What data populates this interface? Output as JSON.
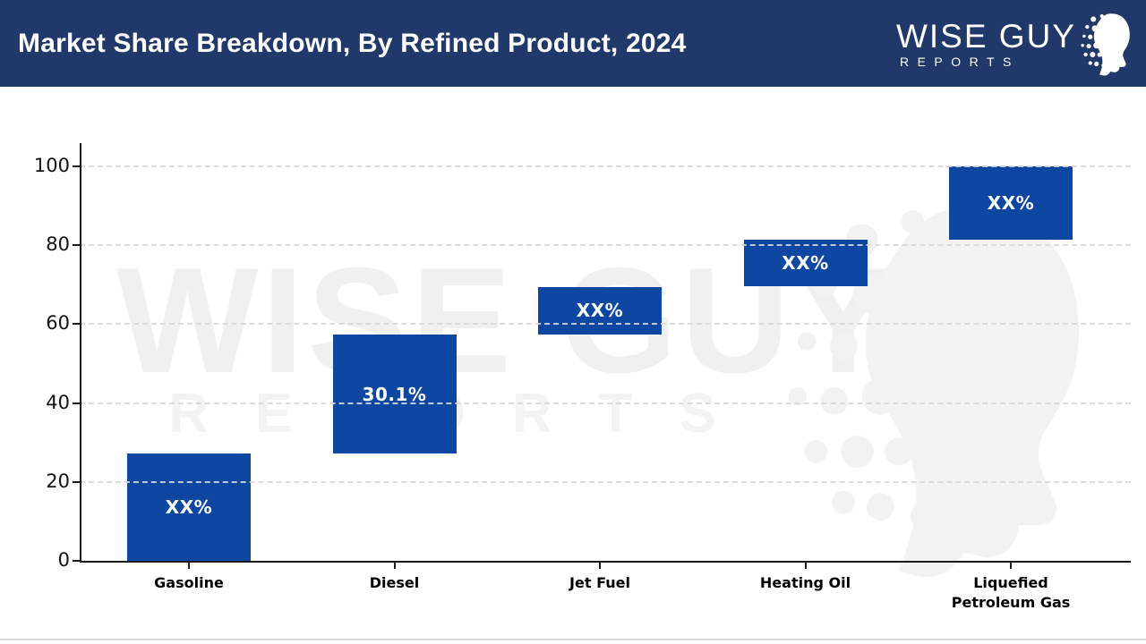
{
  "header": {
    "title": "Market Share Breakdown, By Refined Product, 2024",
    "logo": {
      "line1": "WISE GUY",
      "line2": "REPORTS"
    }
  },
  "watermark": {
    "line1": "WISE GUY",
    "line2": "REPORTS"
  },
  "colors": {
    "header_bg": "#20386a",
    "bar": "#0d47a1",
    "axis": "#1a1a1a",
    "grid": "#d7d7d7",
    "bar_label_text": "#ffffff",
    "watermark": "#f1f1f1",
    "bottom_divider": "#d9d9d9"
  },
  "chart_data": {
    "type": "bar",
    "subtype": "waterfall",
    "title": "Market Share Breakdown, By Refined Product, 2024",
    "xlabel": "",
    "ylabel": "",
    "ylim": [
      0,
      105
    ],
    "yticks": [
      0,
      20,
      40,
      60,
      80,
      100
    ],
    "grid": "horizontal-dashed-above-bars",
    "legend": "none",
    "categories": [
      "Gasoline",
      "Diesel",
      "Jet Fuel",
      "Heating Oil",
      "Liquefied Petroleum Gas"
    ],
    "categories_lines": [
      [
        "Gasoline"
      ],
      [
        "Diesel"
      ],
      [
        "Jet Fuel"
      ],
      [
        "Heating Oil"
      ],
      [
        "Liquefied",
        "Petroleum Gas"
      ]
    ],
    "segments": [
      {
        "category": "Gasoline",
        "base": 0,
        "top": 27.2,
        "value": 27.2,
        "label": "XX%"
      },
      {
        "category": "Diesel",
        "base": 27.2,
        "top": 57.3,
        "value": 30.1,
        "label": "30.1%"
      },
      {
        "category": "Jet Fuel",
        "base": 57.4,
        "top": 69.5,
        "value": 12.1,
        "label": "XX%"
      },
      {
        "category": "Heating Oil",
        "base": 69.6,
        "top": 81.3,
        "value": 11.7,
        "label": "XX%"
      },
      {
        "category": "Liquefied Petroleum Gas",
        "base": 81.3,
        "top": 99.9,
        "value": 18.6,
        "label": "XX%"
      }
    ]
  }
}
